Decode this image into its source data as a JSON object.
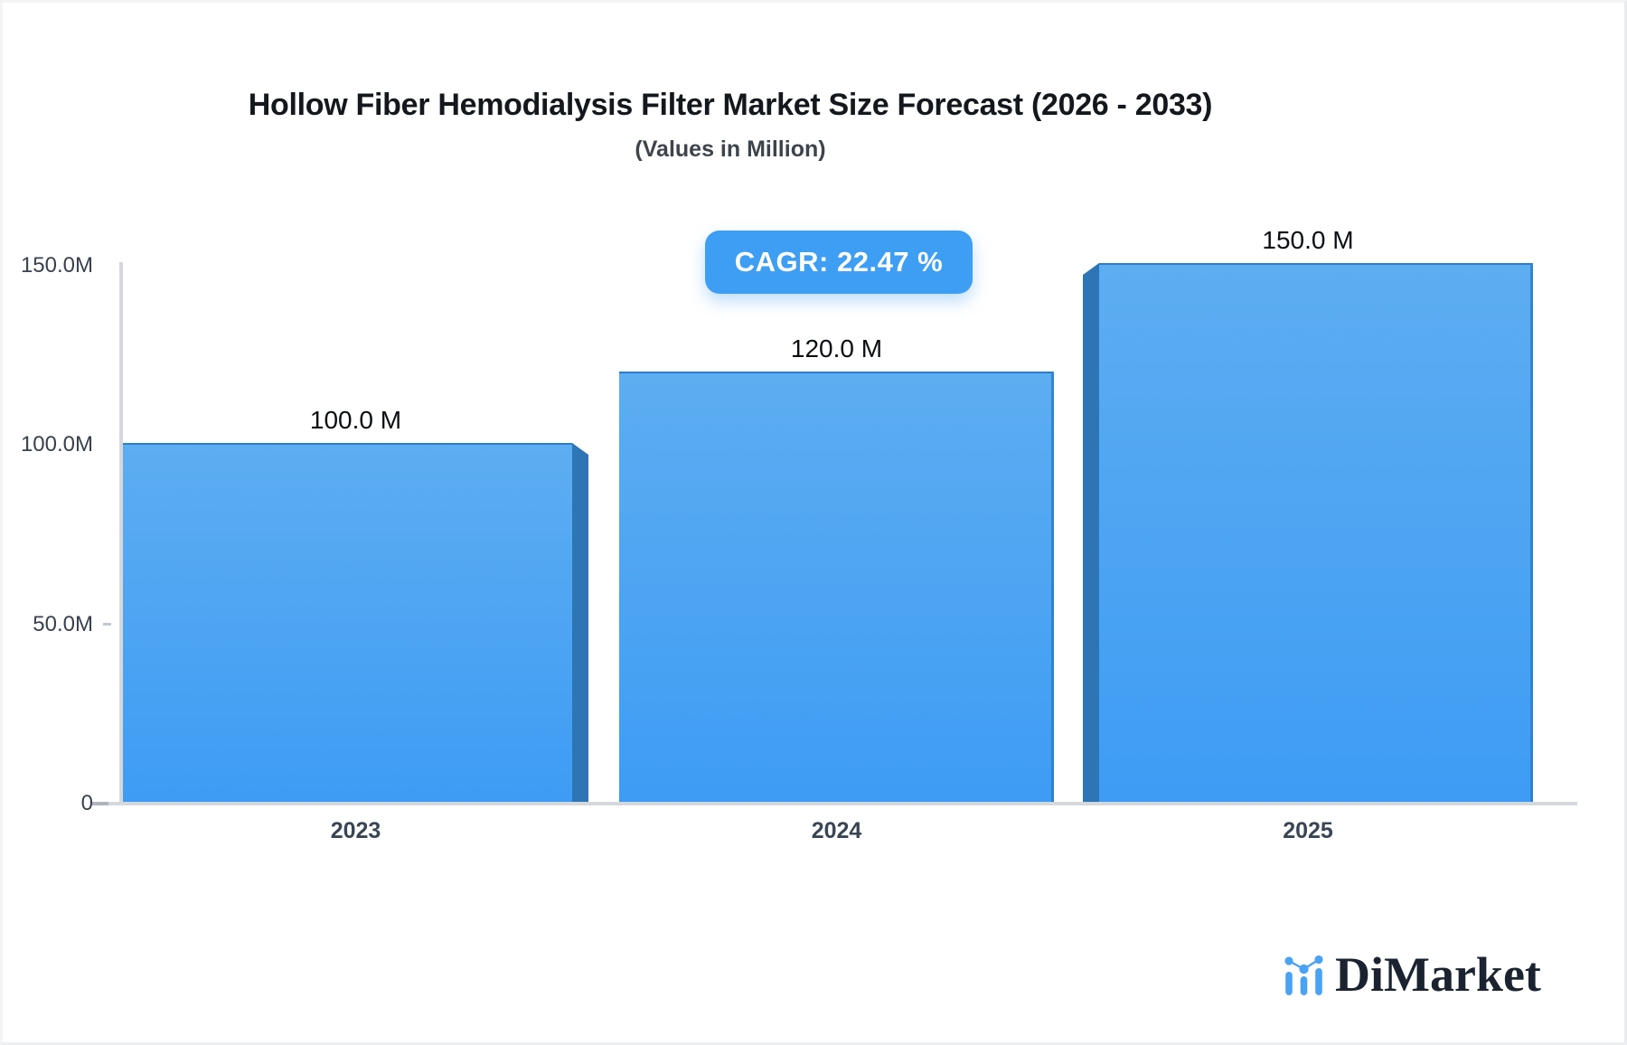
{
  "title": "Hollow Fiber Hemodialysis Filter Market Size Forecast (2026 - 2033)",
  "subtitle": "(Values in Million)",
  "cagr": {
    "label": "CAGR: 22.47 %",
    "value_percent": 22.47
  },
  "chart_data": {
    "type": "bar",
    "title": "Hollow Fiber Hemodialysis Filter Market Size Forecast (2026 - 2033)",
    "subtitle": "(Values in Million)",
    "categories": [
      "2023",
      "2024",
      "2025"
    ],
    "values": [
      100,
      120,
      150
    ],
    "value_labels": [
      "100.0 M",
      "120.0 M",
      "150.0 M"
    ],
    "unit": "Million",
    "xlabel": "",
    "ylabel": "",
    "ylim": [
      0,
      150
    ],
    "ytick_labels": [
      "150.0M",
      "100.0M",
      "50.0M",
      "0"
    ],
    "ytick_values": [
      150,
      100,
      50,
      0
    ],
    "grid": false,
    "legend": false,
    "bar_style": "3d-extruded",
    "bar_color_top": "#5dadf1",
    "bar_color_bottom": "#3e9cf4",
    "bar_side_color": "#2d75b5",
    "axis_color": "#d5d8dc"
  },
  "colors": {
    "accent": "#3e9ef4",
    "badge_background": "#3e9ef4",
    "badge_text": "#ffffff",
    "title_text": "#14181d",
    "axis_label_text": "#39414e",
    "logo_text": "#1b2330",
    "logo_icon_blue": "#4aa2f5"
  },
  "branding": {
    "logo_text": "DiMarket"
  }
}
